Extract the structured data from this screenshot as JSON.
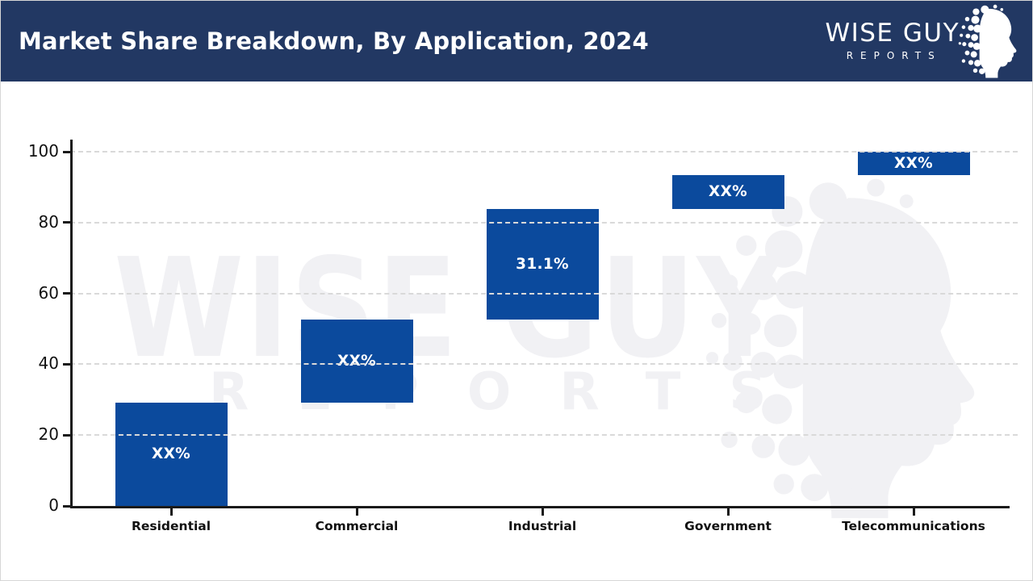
{
  "header": {
    "title": "Market Share Breakdown, By Application, 2024",
    "logo": {
      "wordmark": "WISE GUY",
      "subtitle": "REPORTS"
    }
  },
  "watermark": {
    "line1": "WISE GUY",
    "line2": "REPORTS"
  },
  "colors": {
    "header_bg": "#223863",
    "header_text": "#ffffff",
    "bar": "#0b4a9d",
    "bar_label": "#ffffff",
    "axis": "#1a1a1a",
    "tick_text": "#111111",
    "gridline": "#d9d9d9",
    "watermark": "#f1f1f4",
    "background": "#ffffff"
  },
  "chart_data": {
    "type": "bar",
    "subtype": "waterfall",
    "title": "Market Share Breakdown, By Application, 2024",
    "categories": [
      "Residential",
      "Commercial",
      "Industrial",
      "Government",
      "Telecommunications"
    ],
    "segments": [
      {
        "category": "Residential",
        "start": 0,
        "end": 29.2,
        "value": 29.2,
        "label": "XX%"
      },
      {
        "category": "Commercial",
        "start": 29.2,
        "end": 52.7,
        "value": 23.5,
        "label": "XX%"
      },
      {
        "category": "Industrial",
        "start": 52.7,
        "end": 83.8,
        "value": 31.1,
        "label": "31.1%"
      },
      {
        "category": "Government",
        "start": 83.8,
        "end": 93.5,
        "value": 9.7,
        "label": "XX%"
      },
      {
        "category": "Telecommunications",
        "start": 93.5,
        "end": 100,
        "value": 6.5,
        "label": "XX%"
      }
    ],
    "xlabel": "",
    "ylabel": "",
    "ylim": [
      0,
      100
    ],
    "yticks": [
      0,
      20,
      40,
      60,
      80,
      100
    ],
    "grid": "horizontal-dashed",
    "legend": "none"
  }
}
